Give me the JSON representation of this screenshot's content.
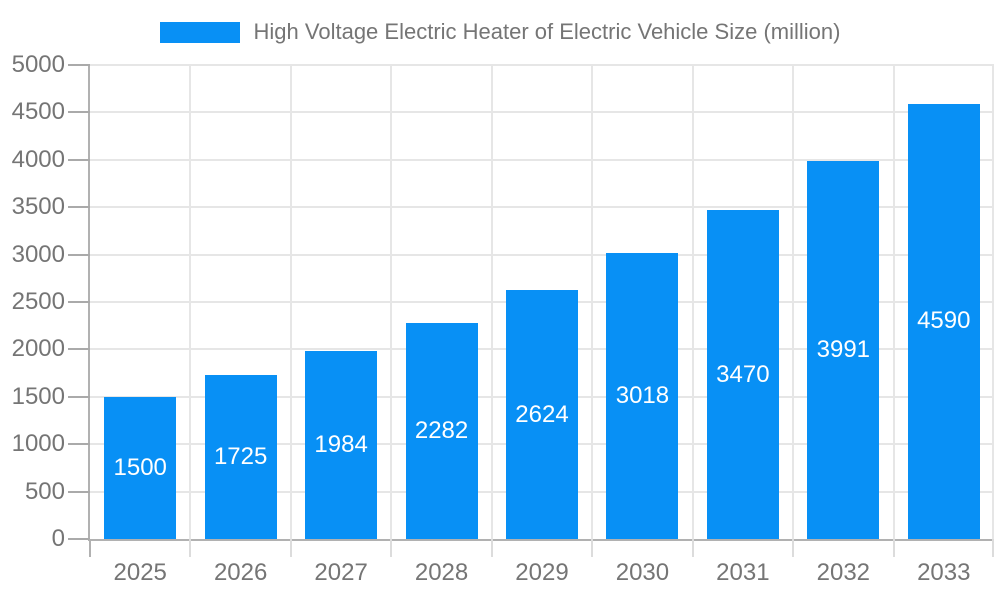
{
  "chart_data": {
    "type": "bar",
    "title": "High Voltage Electric Heater of Electric Vehicle Size (million)",
    "categories": [
      "2025",
      "2026",
      "2027",
      "2028",
      "2029",
      "2030",
      "2031",
      "2032",
      "2033"
    ],
    "values": [
      1500,
      1725,
      1984,
      2282,
      2624,
      3018,
      3470,
      3991,
      4590
    ],
    "xlabel": "",
    "ylabel": "",
    "ylim": [
      0,
      5000
    ],
    "yticks": [
      0,
      500,
      1000,
      1500,
      2000,
      2500,
      3000,
      3500,
      4000,
      4500,
      5000
    ],
    "grid": true,
    "legend_position": "top",
    "value_labels": "inside-center",
    "bar_color": "#0890f5",
    "bar_label_color": "#ffffff",
    "axis_text_color": "#757575",
    "grid_color": "#e6e6e6",
    "axis_line_color": "#b1b1b1"
  }
}
